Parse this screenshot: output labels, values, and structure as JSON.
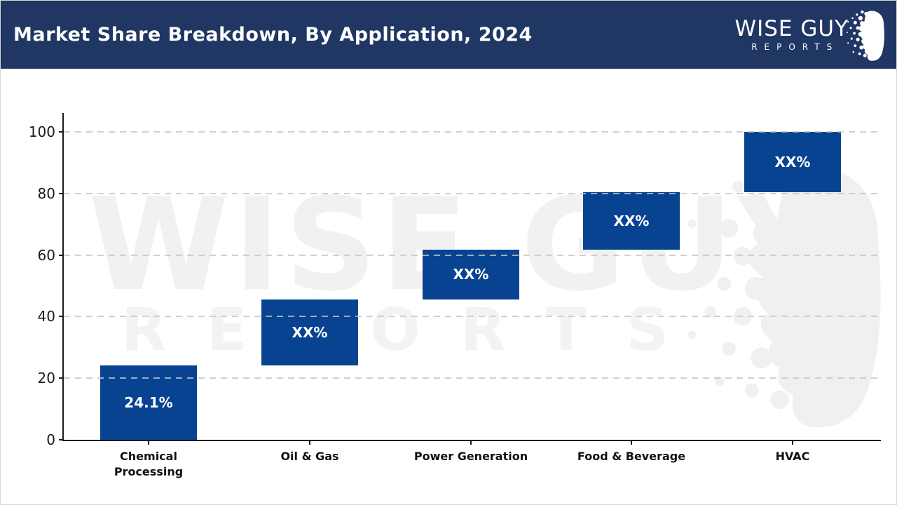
{
  "header": {
    "title": "Market Share Breakdown, By Application, 2024",
    "logo": {
      "brand": "WISE GUY",
      "sub": "REPORTS"
    }
  },
  "watermark": {
    "brand": "WISE GUY",
    "sub": "R E P O R T S"
  },
  "chart_data": {
    "type": "bar",
    "variant": "waterfall",
    "title": "Market Share Breakdown, By Application, 2024",
    "categories": [
      "Chemical\nProcessing",
      "Oil & Gas",
      "Power Generation",
      "Food & Beverage",
      "HVAC"
    ],
    "segments": [
      {
        "category": "Chemical\nProcessing",
        "start": 0,
        "end": 24.1,
        "label": "24.1%"
      },
      {
        "category": "Oil & Gas",
        "start": 24.1,
        "end": 45.6,
        "label": "XX%"
      },
      {
        "category": "Power Generation",
        "start": 45.6,
        "end": 61.7,
        "label": "XX%"
      },
      {
        "category": "Food & Beverage",
        "start": 61.7,
        "end": 80.3,
        "label": "XX%"
      },
      {
        "category": "HVAC",
        "start": 80.3,
        "end": 100,
        "label": "XX%"
      }
    ],
    "ylim": [
      0,
      100
    ],
    "yticks": [
      0,
      20,
      40,
      60,
      80,
      100
    ],
    "grid": {
      "axis": "y",
      "style": "dashed"
    },
    "legend": null,
    "colors": {
      "bar": "#084391",
      "bar_label": "#ffffff",
      "axis": "#1a1a1a",
      "grid": "#c9c9c9",
      "header_bg": "#203764",
      "watermark": "#f1f1f1"
    }
  }
}
